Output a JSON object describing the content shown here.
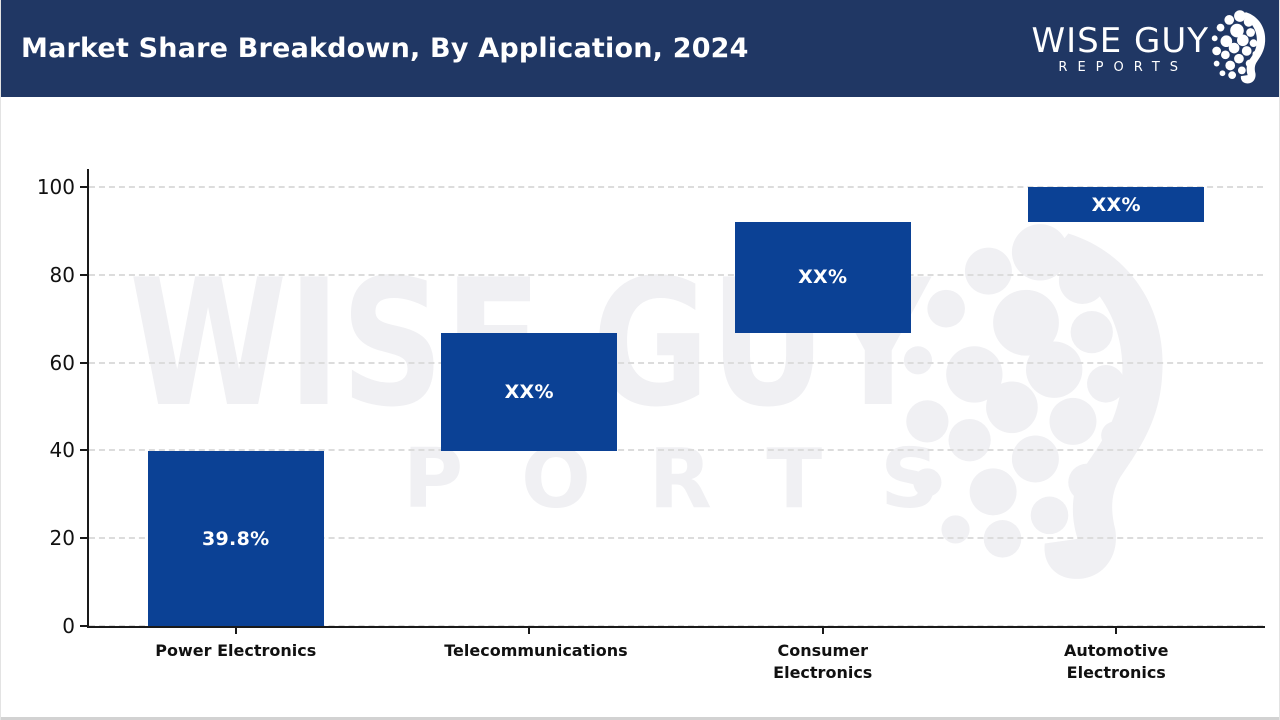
{
  "header": {
    "title": "Market Share Breakdown, By Application, 2024",
    "bg_color": "#203764",
    "logo": {
      "line1": "WISE GUY",
      "line2": "REPORTS",
      "head_icon": "dotted-head-profile"
    }
  },
  "watermark": {
    "line1": "WISE GUY",
    "line2": "PORTS",
    "head_icon": "dotted-head-profile",
    "color": "#f0f0f3"
  },
  "chart_data": {
    "type": "bar",
    "subtype": "waterfall",
    "title": "Market Share Breakdown, By Application, 2024",
    "xlabel": "",
    "ylabel": "",
    "ylim": [
      0,
      100
    ],
    "yticks": [
      0,
      20,
      40,
      60,
      80,
      100
    ],
    "grid": "horizontal-dashed",
    "legend": "none",
    "bar_color": "#0b4195",
    "value_label_color": "#ffffff",
    "categories": [
      "Power Electronics",
      "Telecommunications",
      "Consumer Electronics",
      "Automotive Electronics"
    ],
    "segments": [
      {
        "category": "Power Electronics",
        "start": 0,
        "end": 39.8,
        "value": 39.8,
        "label": "39.8%"
      },
      {
        "category": "Telecommunications",
        "start": 39.8,
        "end": 66.8,
        "value": 27.0,
        "label": "XX%"
      },
      {
        "category": "Consumer Electronics",
        "start": 66.8,
        "end": 92.0,
        "value": 25.2,
        "label": "XX%"
      },
      {
        "category": "Automotive Electronics",
        "start": 92.0,
        "end": 100.0,
        "value": 8.0,
        "label": "XX%"
      }
    ]
  }
}
